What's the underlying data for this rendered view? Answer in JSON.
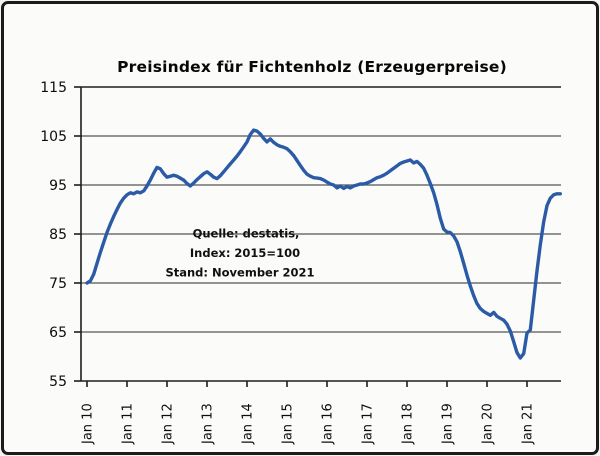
{
  "chart_data": {
    "type": "line",
    "title": "Preisindex für Fichtenholz (Erzeugerpreise)",
    "xlabel": "",
    "ylabel": "",
    "ylim": [
      55,
      115
    ],
    "y_ticks": [
      55,
      65,
      75,
      85,
      95,
      105,
      115
    ],
    "x_tick_labels": [
      "Jan 10",
      "Jan 11",
      "Jan 12",
      "Jan 13",
      "Jan 14",
      "Jan 15",
      "Jan 16",
      "Jan 17",
      "Jan 18",
      "Jan 19",
      "Jan 20",
      "Jan 21"
    ],
    "x_range": "Jan 2010 - Nov 2021, monthly",
    "grid": "horizontal gridlines every 10 index points",
    "legend": "none",
    "series": [
      {
        "name": "Preisindex Fichtenholz (2015=100)",
        "color": "#2b5ba7",
        "start": "2010-01",
        "interval_months": 1,
        "values": [
          75.0,
          75.4,
          76.8,
          79.0,
          81.2,
          83.3,
          85.3,
          87.0,
          88.6,
          90.0,
          91.3,
          92.3,
          93.0,
          93.4,
          93.2,
          93.6,
          93.4,
          93.8,
          94.8,
          96.0,
          97.4,
          98.6,
          98.3,
          97.3,
          96.6,
          96.8,
          97.0,
          96.8,
          96.4,
          96.0,
          95.3,
          94.8,
          95.4,
          96.1,
          96.7,
          97.3,
          97.7,
          97.2,
          96.6,
          96.3,
          96.9,
          97.7,
          98.5,
          99.3,
          100.1,
          100.9,
          101.8,
          102.8,
          103.8,
          105.3,
          106.2,
          106.0,
          105.4,
          104.5,
          103.8,
          104.4,
          103.7,
          103.2,
          102.9,
          102.7,
          102.4,
          101.8,
          101.0,
          100.0,
          99.0,
          98.0,
          97.2,
          96.8,
          96.5,
          96.4,
          96.3,
          96.0,
          95.6,
          95.2,
          95.0,
          94.4,
          94.8,
          94.3,
          94.7,
          94.4,
          94.8,
          95.0,
          95.2,
          95.2,
          95.4,
          95.7,
          96.1,
          96.5,
          96.7,
          97.0,
          97.4,
          97.9,
          98.4,
          98.9,
          99.4,
          99.7,
          99.9,
          100.1,
          99.5,
          99.8,
          99.2,
          98.4,
          97.0,
          95.3,
          93.4,
          91.0,
          88.2,
          86.0,
          85.4,
          85.3,
          84.6,
          83.4,
          81.4,
          79.0,
          76.6,
          74.4,
          72.4,
          70.8,
          69.8,
          69.2,
          68.8,
          68.4,
          69.0,
          68.2,
          67.8,
          67.4,
          66.6,
          65.2,
          63.0,
          60.8,
          59.7,
          60.6,
          64.8,
          65.4,
          71.5,
          77.5,
          82.8,
          87.5,
          90.8,
          92.3,
          93.0,
          93.2,
          93.2
        ]
      }
    ]
  },
  "annotation": {
    "lines": [
      "Quelle: destatis,",
      "Index: 2015=100",
      "Stand: November 2021"
    ]
  },
  "colors": {
    "line": "#2b5ba7",
    "grid": "#555555",
    "axis": "#1f1f1f",
    "frame_border": "#1b1b1b",
    "background": "#fbfbf9",
    "text": "#0d0d0d"
  }
}
